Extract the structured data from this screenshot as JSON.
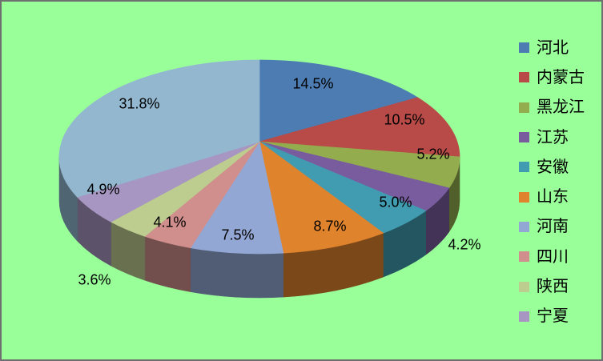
{
  "window": {
    "background_color": "#99FF99",
    "border_color": "#6f6f6f"
  },
  "chart_data": {
    "type": "pie",
    "style": "3d",
    "legend_position": "right",
    "labels_format": "percent",
    "title": "",
    "slices": [
      {
        "name": "河北",
        "percent": 14.5,
        "label": "14.5%",
        "color": "#4C7CB2",
        "in_legend": true
      },
      {
        "name": "内蒙古",
        "percent": 10.5,
        "label": "10.5%",
        "color": "#B84B48",
        "in_legend": true
      },
      {
        "name": "黑龙江",
        "percent": 5.2,
        "label": "5.2%",
        "color": "#93AC4E",
        "in_legend": true
      },
      {
        "name": "江苏",
        "percent": 4.2,
        "label": "4.2%",
        "color": "#795C9E",
        "in_legend": true
      },
      {
        "name": "安徽",
        "percent": 5.0,
        "label": "5.0%",
        "color": "#429CB1",
        "in_legend": true
      },
      {
        "name": "山东",
        "percent": 8.7,
        "label": "8.7%",
        "color": "#E0832D",
        "in_legend": true
      },
      {
        "name": "河南",
        "percent": 7.5,
        "label": "7.5%",
        "color": "#93A7D4",
        "in_legend": true
      },
      {
        "name": "四川",
        "percent": 4.1,
        "label": "4.1%",
        "color": "#D08E8C",
        "in_legend": true
      },
      {
        "name": "陕西",
        "percent": 3.6,
        "label": "3.6%",
        "color": "#BDCC8F",
        "in_legend": true
      },
      {
        "name": "宁夏",
        "percent": 4.9,
        "label": "4.9%",
        "color": "#A796C2",
        "in_legend": true
      },
      {
        "name": "",
        "percent": 31.8,
        "label": "31.8%",
        "color": "#92B7CF",
        "in_legend": false
      }
    ]
  }
}
